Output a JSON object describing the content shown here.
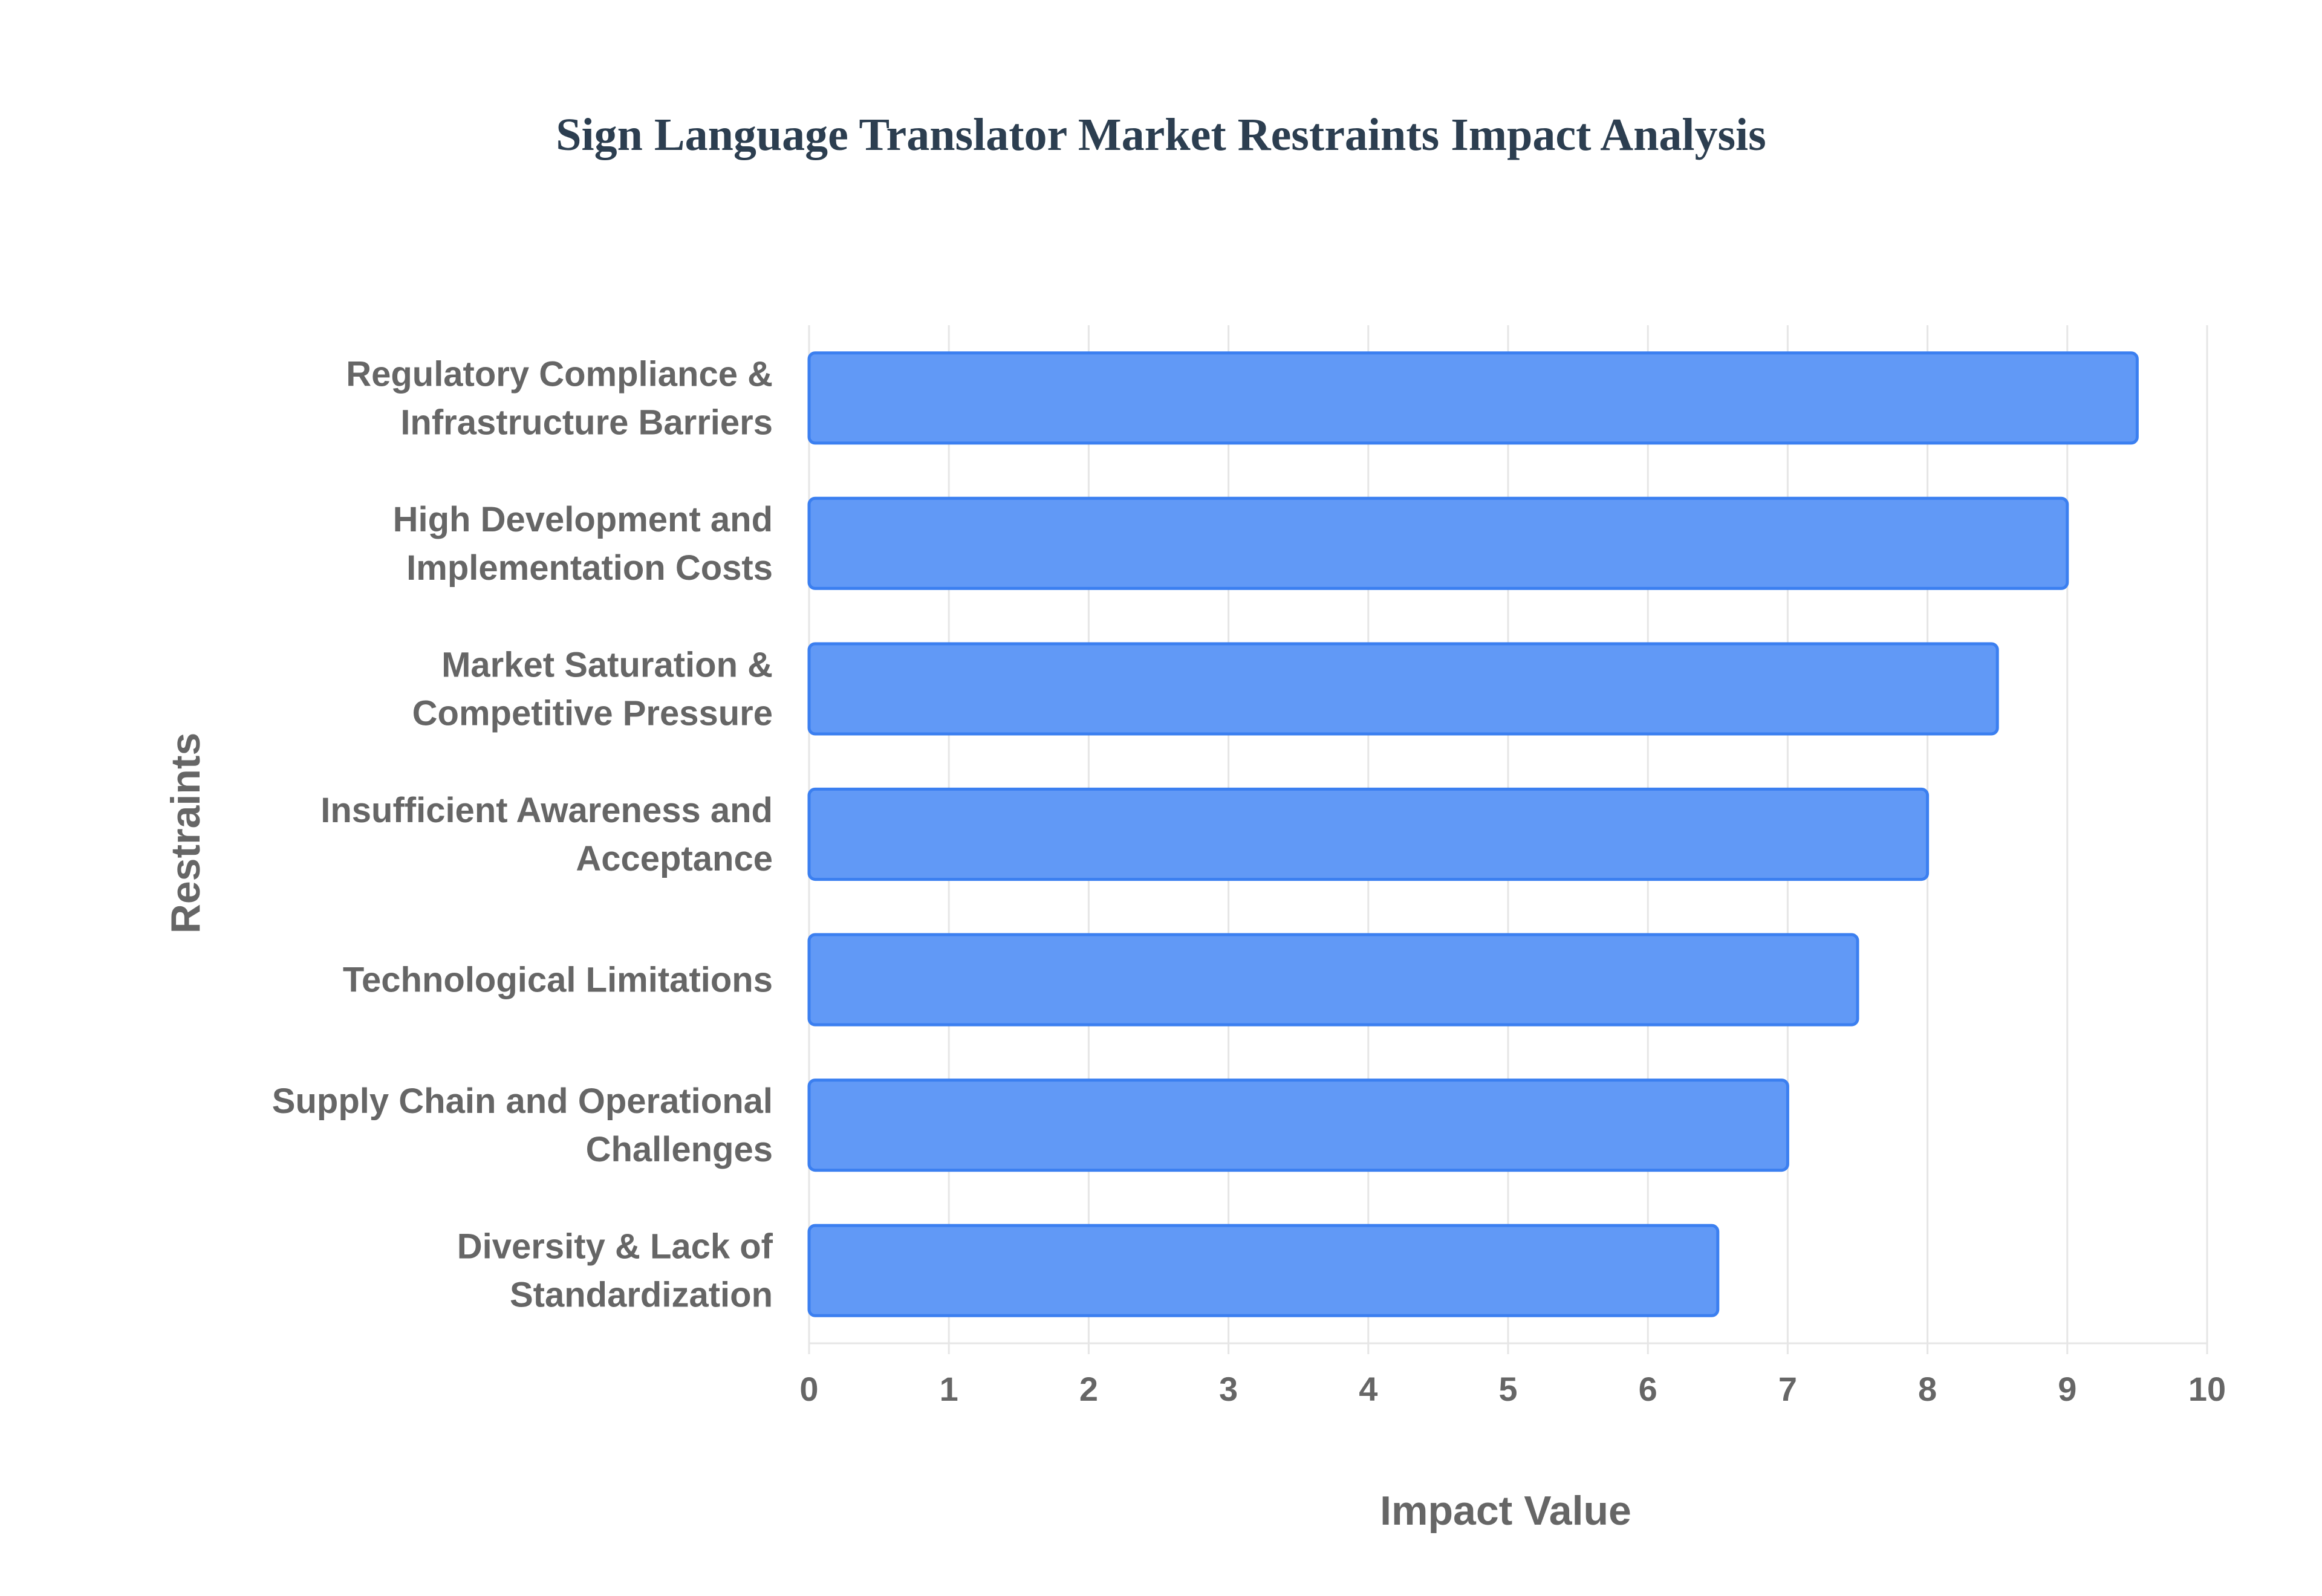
{
  "chart_data": {
    "type": "bar",
    "orientation": "horizontal",
    "title": "Sign Language Translator Market Restraints Impact Analysis",
    "xlabel": "Impact Value",
    "ylabel": "Restraints",
    "xlim": [
      0,
      10
    ],
    "xticks": [
      "0",
      "1",
      "2",
      "3",
      "4",
      "5",
      "6",
      "7",
      "8",
      "9",
      "10"
    ],
    "categories": [
      [
        "Regulatory Compliance &",
        "Infrastructure Barriers"
      ],
      [
        "High Development and",
        "Implementation Costs"
      ],
      [
        "Market Saturation &",
        "Competitive Pressure"
      ],
      [
        "Insufficient Awareness and",
        "Acceptance"
      ],
      [
        "Technological Limitations"
      ],
      [
        "Supply Chain and Operational",
        "Challenges"
      ],
      [
        "Diversity & Lack of",
        "Standardization"
      ]
    ],
    "values": [
      9.5,
      9.0,
      8.5,
      8.0,
      7.5,
      7.0,
      6.5
    ],
    "grid": true,
    "colors": {
      "bar_fill": "#6199f6",
      "bar_stroke": "#3b7ff0",
      "grid": "#e6e6e6",
      "text": "#666666",
      "title": "#2c3e50"
    }
  }
}
